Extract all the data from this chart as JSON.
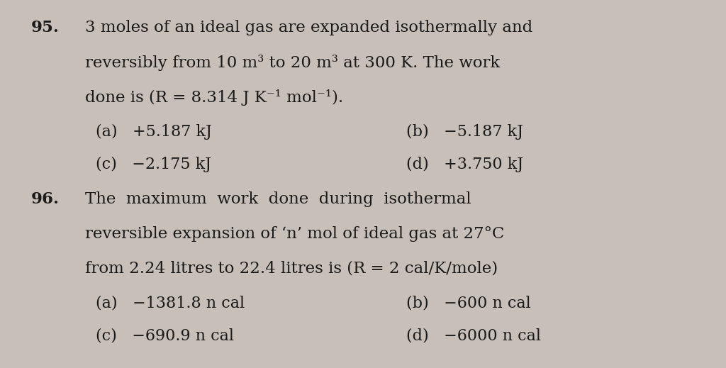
{
  "background_color": "#c8c0b8",
  "text_color": "#1a1a1a",
  "q95_number": "95.",
  "q95_line1": "3 moles of an ideal gas are expanded isothermally and",
  "q95_line2": "reversibly from 10 m³ to 20 m³ at 300 K. The work",
  "q95_line3": "done is (R = 8.314 J K⁻¹ mol⁻¹).",
  "q95_a": "(a)   +5.187 kJ",
  "q95_b": "(b)   −5.187 kJ",
  "q95_c": "(c)   −2.175 kJ",
  "q95_d": "(d)   +3.750 kJ",
  "q96_number": "96.",
  "q96_line1": "The  maximum  work  done  during  isothermal",
  "q96_line2": "reversible expansion of ‘n’ mol of ideal gas at 27°C",
  "q96_line3": "from 2.24 litres to 22.4 litres is (R = 2 cal/K/mole)",
  "q96_a": "(a)   −1381.8 n cal",
  "q96_b": "(b)   −600 n cal",
  "q96_c": "(c)   −690.9 n cal",
  "q96_d": "(d)   −6000 n cal",
  "font_size_body": 16.5,
  "font_size_options": 16.0,
  "fontweight_normal": "normal",
  "fontweight_bold": "bold"
}
